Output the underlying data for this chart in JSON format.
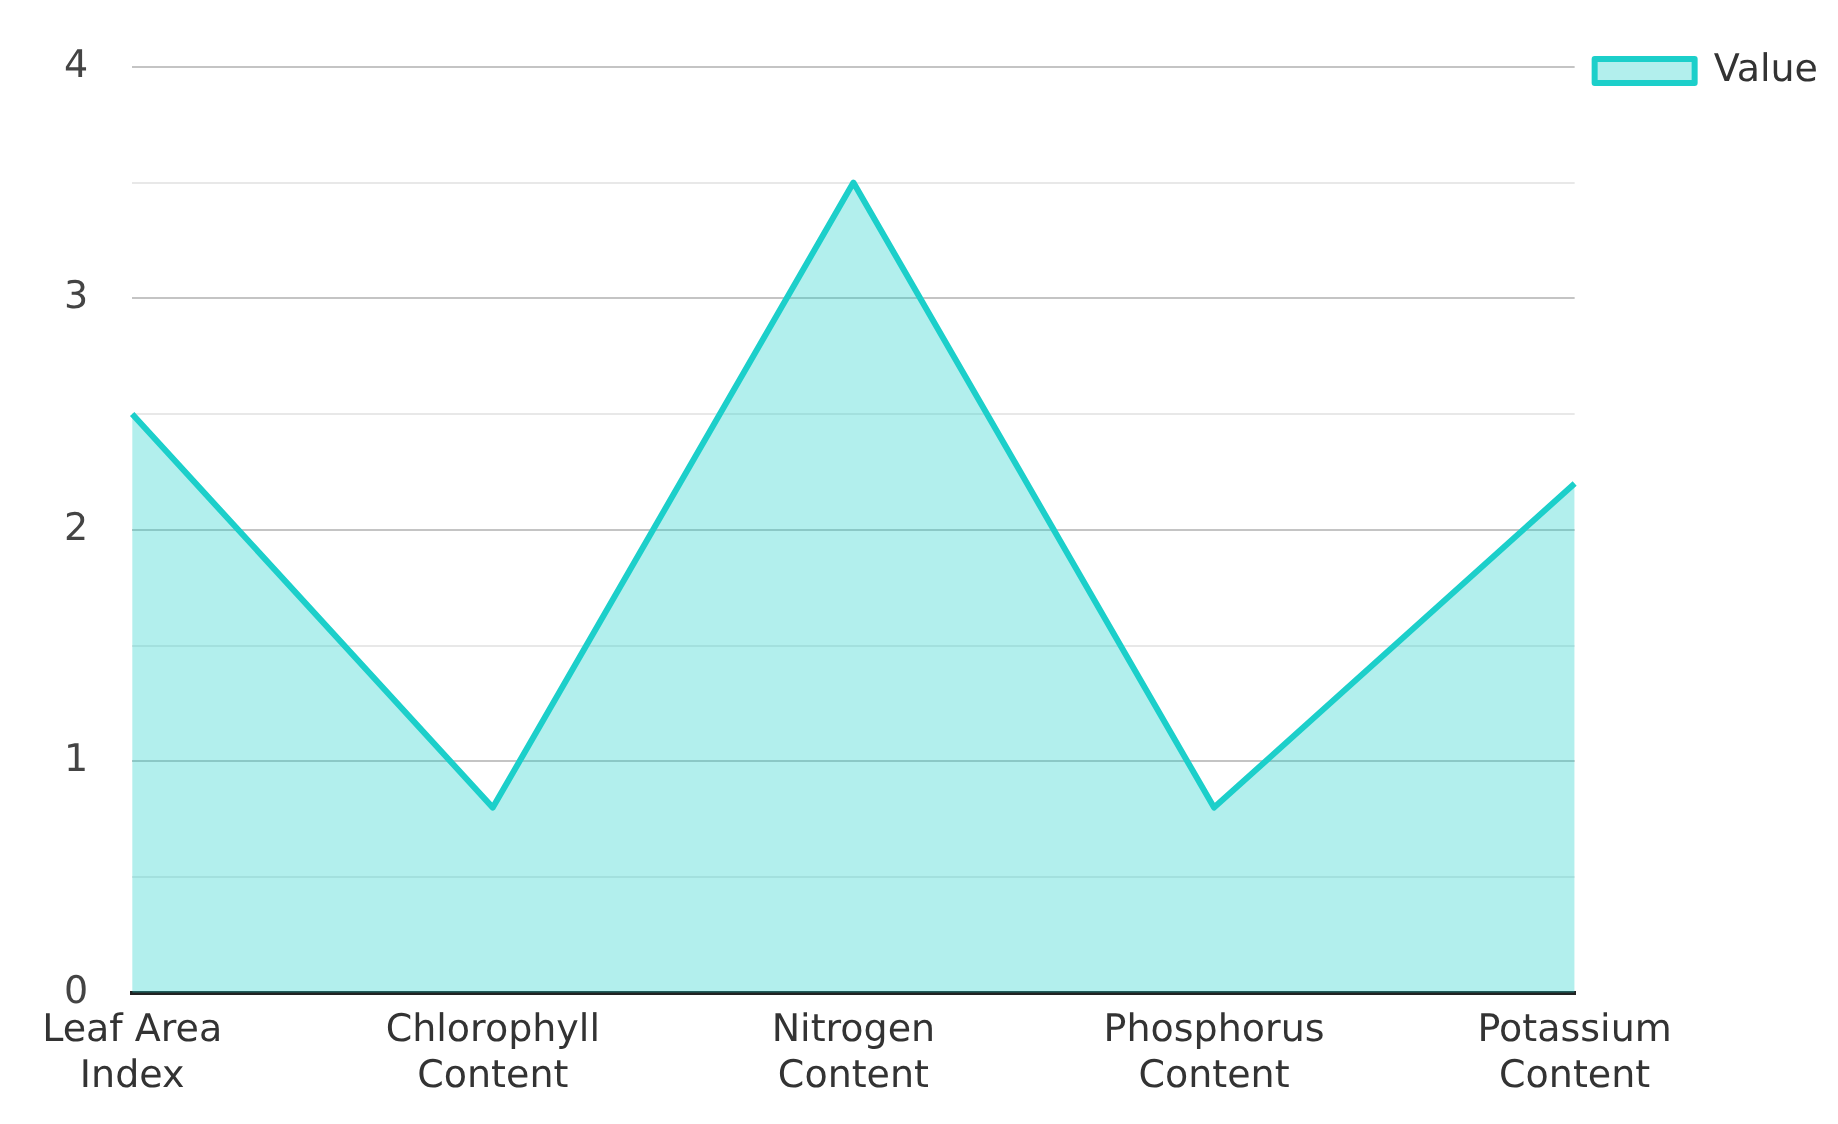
{
  "chart_data": {
    "type": "area",
    "categories": [
      "Leaf Area Index",
      "Chlorophyll Content",
      "Nitrogen Content",
      "Phosphorus Content",
      "Potassium Content"
    ],
    "series": [
      {
        "name": "Value",
        "color": "#1ccfca",
        "values": [
          2.5,
          0.8,
          3.5,
          0.8,
          2.2
        ]
      }
    ],
    "ylim": [
      0,
      4
    ],
    "yticks": [
      0,
      {
        "value": 0.5,
        "label": null
      },
      1,
      {
        "value": 1.5,
        "label": null
      },
      2,
      {
        "value": 2.5,
        "label": null
      },
      3,
      {
        "value": 3.5,
        "label": null
      },
      4
    ],
    "grid": "y",
    "legend": "top right",
    "marker": "none",
    "line_style": "solid"
  }
}
